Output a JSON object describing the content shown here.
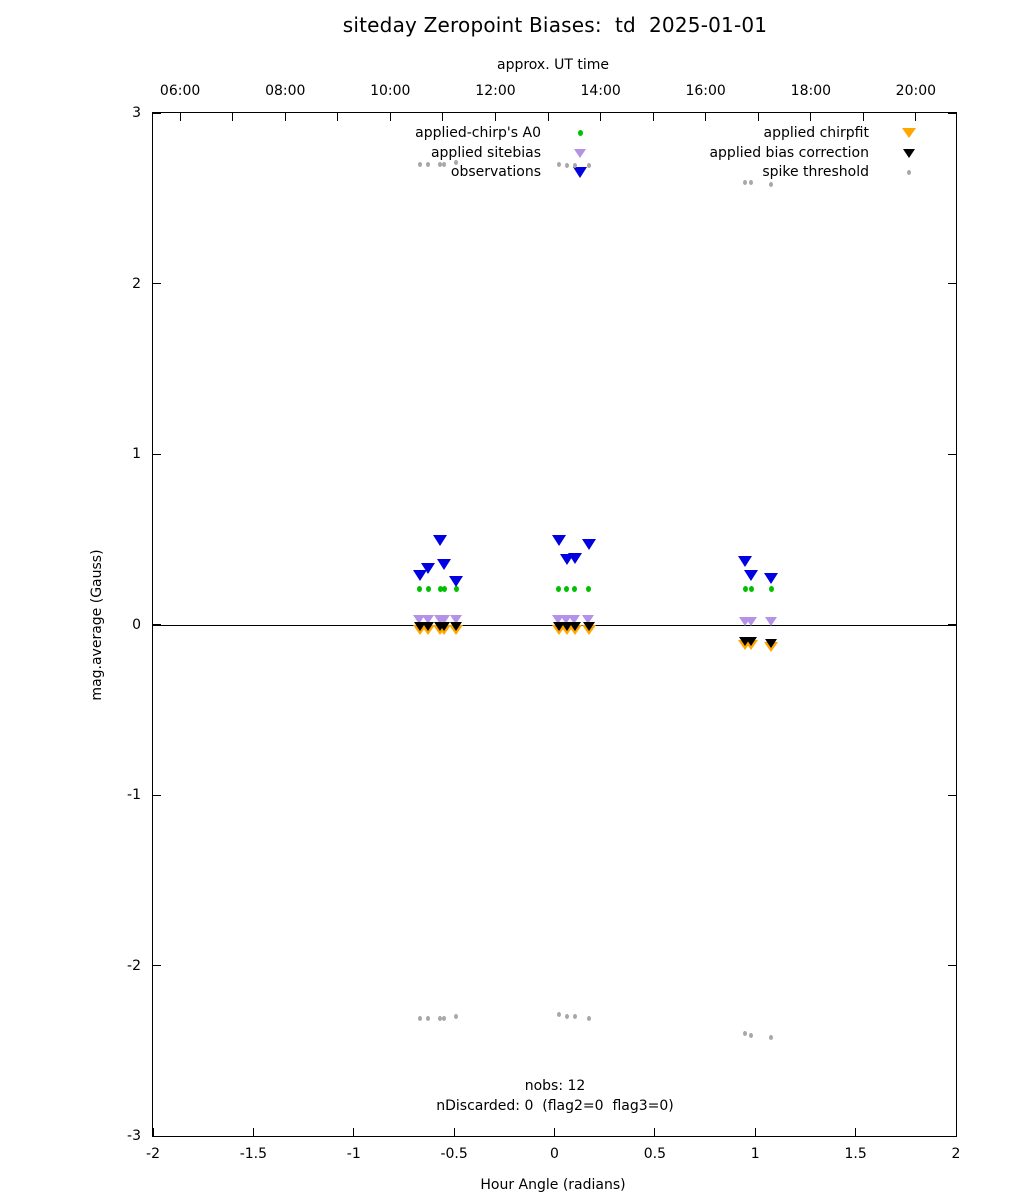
{
  "title": "siteday Zeropoint Biases:  td  2025-01-01",
  "annotations": {
    "nobs": "nobs: 12",
    "ndiscarded": "nDiscarded: 0  (flag2=0  flag3=0)"
  },
  "legend": {
    "left": [
      {
        "label": "applied-chirp's A0",
        "series": "applied-chirp's A0"
      },
      {
        "label": "applied sitebias",
        "series": "applied sitebias"
      },
      {
        "label": "observations",
        "series": "observations"
      }
    ],
    "right": [
      {
        "label": "applied chirpfit",
        "series": "applied chirpfit"
      },
      {
        "label": "applied bias correction",
        "series": "applied bias correction"
      },
      {
        "label": "spike threshold",
        "series": "spike threshold"
      }
    ]
  },
  "chart_data": {
    "type": "scatter",
    "title": "siteday Zeropoint Biases:  td  2025-01-01",
    "xlabel": "Hour Angle (radians)",
    "ylabel": "mag.average (Gauss)",
    "x2label": "approx. UT time",
    "xlim": [
      -2,
      2
    ],
    "ylim": [
      -3,
      3
    ],
    "grid": false,
    "zero_line": true,
    "legend_position": "top-inside-two-columns",
    "xticks": [
      {
        "label": "-2",
        "x": -2
      },
      {
        "label": "-1.5",
        "x": -1.5
      },
      {
        "label": "-1",
        "x": -1
      },
      {
        "label": "-0.5",
        "x": -0.5
      },
      {
        "label": "0",
        "x": 0
      },
      {
        "label": "0.5",
        "x": 0.5
      },
      {
        "label": "1",
        "x": 1
      },
      {
        "label": "1.5",
        "x": 1.5
      },
      {
        "label": "2",
        "x": 2
      }
    ],
    "yticks": [
      {
        "label": "-3",
        "y": -3
      },
      {
        "label": "-2",
        "y": -2
      },
      {
        "label": "-1",
        "y": -1
      },
      {
        "label": "0",
        "y": 0
      },
      {
        "label": "1",
        "y": 1
      },
      {
        "label": "2",
        "y": 2
      },
      {
        "label": "3",
        "y": 3
      }
    ],
    "x2ticks": [
      {
        "label": "06:00",
        "x": -1.865
      },
      {
        "label": "",
        "x": -1.603
      },
      {
        "label": "08:00",
        "x": -1.341
      },
      {
        "label": "",
        "x": -1.079
      },
      {
        "label": "10:00",
        "x": -0.818
      },
      {
        "label": "",
        "x": -0.556
      },
      {
        "label": "12:00",
        "x": -0.294
      },
      {
        "label": "",
        "x": -0.032
      },
      {
        "label": "14:00",
        "x": 0.23
      },
      {
        "label": "",
        "x": 0.491
      },
      {
        "label": "16:00",
        "x": 0.753
      },
      {
        "label": "",
        "x": 1.015
      },
      {
        "label": "18:00",
        "x": 1.277
      },
      {
        "label": "",
        "x": 1.539
      },
      {
        "label": "20:00",
        "x": 1.8
      }
    ],
    "series": [
      {
        "name": "applied-chirp's A0",
        "marker": "dot",
        "color": "#00c000",
        "w": 5,
        "h": 6,
        "points": [
          [
            -0.67,
            0.21
          ],
          [
            -0.63,
            0.21
          ],
          [
            -0.57,
            0.21
          ],
          [
            -0.55,
            0.21
          ],
          [
            -0.49,
            0.21
          ],
          [
            0.02,
            0.21
          ],
          [
            0.06,
            0.21
          ],
          [
            0.1,
            0.21
          ],
          [
            0.17,
            0.21
          ],
          [
            0.95,
            0.21
          ],
          [
            0.98,
            0.21
          ],
          [
            1.08,
            0.21
          ]
        ]
      },
      {
        "name": "applied chirpfit",
        "marker": "triangle-down",
        "color": "#ffa600",
        "w": 14,
        "h": 10,
        "points": [
          [
            -0.67,
            -0.03
          ],
          [
            -0.63,
            -0.03
          ],
          [
            -0.57,
            -0.03
          ],
          [
            -0.55,
            -0.03
          ],
          [
            -0.49,
            -0.03
          ],
          [
            0.02,
            -0.03
          ],
          [
            0.06,
            -0.03
          ],
          [
            0.1,
            -0.03
          ],
          [
            0.17,
            -0.03
          ],
          [
            0.95,
            -0.12
          ],
          [
            0.98,
            -0.12
          ],
          [
            1.08,
            -0.13
          ]
        ]
      },
      {
        "name": "applied sitebias",
        "marker": "triangle-down",
        "color": "#b392e8",
        "w": 13,
        "h": 9,
        "points": [
          [
            -0.67,
            0.03
          ],
          [
            -0.63,
            0.03
          ],
          [
            -0.57,
            0.03
          ],
          [
            -0.55,
            0.03
          ],
          [
            -0.49,
            0.03
          ],
          [
            0.02,
            0.03
          ],
          [
            0.06,
            0.03
          ],
          [
            0.1,
            0.03
          ],
          [
            0.17,
            0.03
          ],
          [
            0.95,
            0.02
          ],
          [
            0.98,
            0.02
          ],
          [
            1.08,
            0.02
          ]
        ]
      },
      {
        "name": "applied bias correction",
        "marker": "triangle-down",
        "color": "#000000",
        "w": 12,
        "h": 9,
        "points": [
          [
            -0.67,
            -0.01
          ],
          [
            -0.63,
            -0.01
          ],
          [
            -0.57,
            -0.01
          ],
          [
            -0.55,
            -0.01
          ],
          [
            -0.49,
            -0.01
          ],
          [
            0.02,
            -0.01
          ],
          [
            0.06,
            -0.01
          ],
          [
            0.1,
            -0.01
          ],
          [
            0.17,
            -0.01
          ],
          [
            0.95,
            -0.1
          ],
          [
            0.98,
            -0.1
          ],
          [
            1.08,
            -0.11
          ]
        ]
      },
      {
        "name": "observations",
        "marker": "triangle-down",
        "color": "#0000e0",
        "w": 14,
        "h": 11,
        "points": [
          [
            -0.67,
            0.29
          ],
          [
            -0.63,
            0.33
          ],
          [
            -0.57,
            0.49
          ],
          [
            -0.55,
            0.35
          ],
          [
            -0.49,
            0.25
          ],
          [
            0.02,
            0.49
          ],
          [
            0.06,
            0.38
          ],
          [
            0.1,
            0.39
          ],
          [
            0.17,
            0.47
          ],
          [
            0.95,
            0.37
          ],
          [
            0.98,
            0.29
          ],
          [
            1.08,
            0.27
          ]
        ]
      },
      {
        "name": "spike threshold",
        "marker": "dot",
        "color": "#a8a8a8",
        "w": 4,
        "h": 5,
        "points": [
          [
            -0.67,
            2.7
          ],
          [
            -0.63,
            2.7
          ],
          [
            -0.57,
            2.7
          ],
          [
            -0.55,
            2.7
          ],
          [
            -0.49,
            2.71
          ],
          [
            0.02,
            2.7
          ],
          [
            0.06,
            2.69
          ],
          [
            0.1,
            2.69
          ],
          [
            0.17,
            2.69
          ],
          [
            0.95,
            2.59
          ],
          [
            0.98,
            2.59
          ],
          [
            1.08,
            2.58
          ],
          [
            -0.67,
            -2.31
          ],
          [
            -0.63,
            -2.31
          ],
          [
            -0.57,
            -2.31
          ],
          [
            -0.55,
            -2.31
          ],
          [
            -0.49,
            -2.3
          ],
          [
            0.02,
            -2.29
          ],
          [
            0.06,
            -2.3
          ],
          [
            0.1,
            -2.3
          ],
          [
            0.17,
            -2.31
          ],
          [
            0.95,
            -2.4
          ],
          [
            0.98,
            -2.41
          ],
          [
            1.08,
            -2.42
          ]
        ]
      }
    ]
  }
}
